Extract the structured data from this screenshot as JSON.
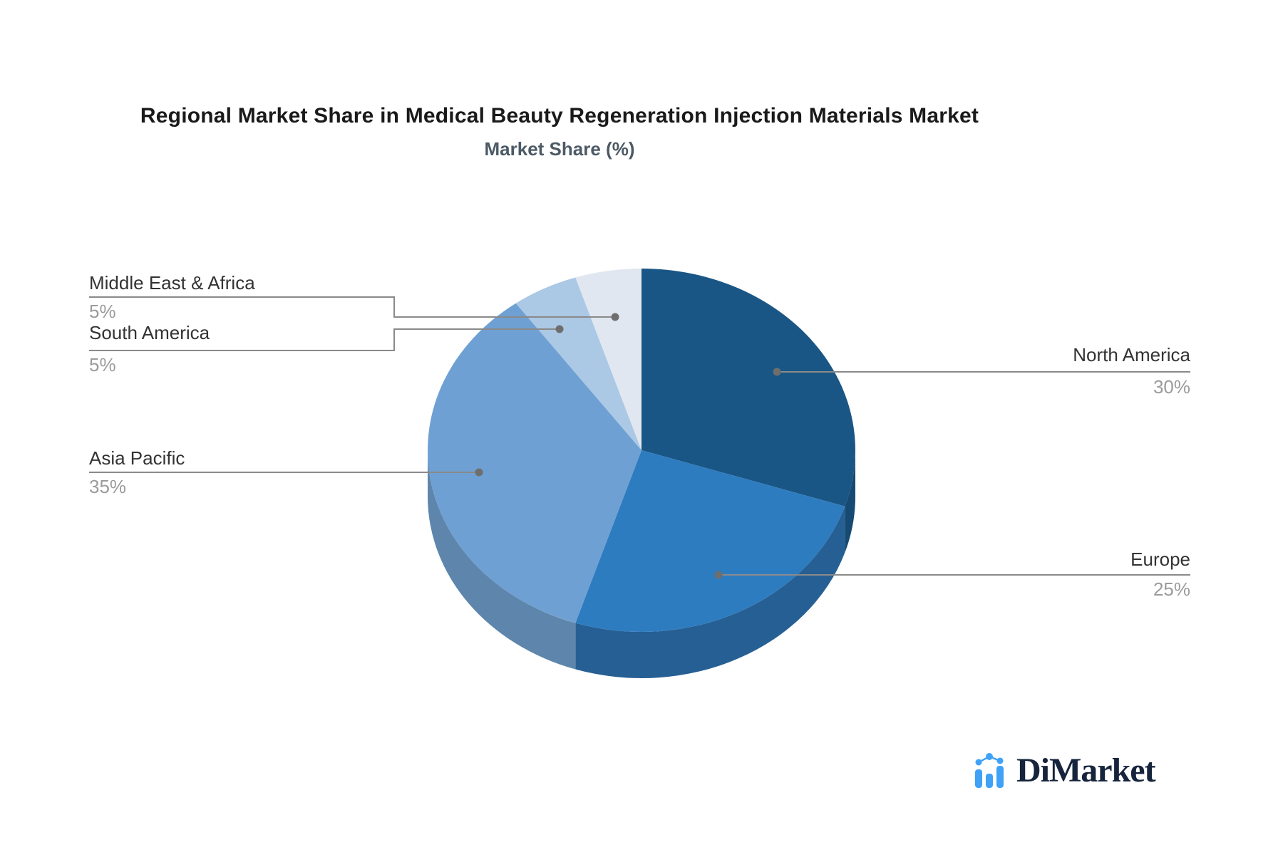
{
  "title": "Regional Market Share in Medical Beauty Regeneration Injection Materials Market",
  "subtitle": "Market Share (%)",
  "brand": {
    "name": "DiMarket"
  },
  "chart_data": {
    "type": "pie",
    "style": "3d",
    "title": "Regional Market Share in Medical Beauty Regeneration Injection Materials Market",
    "subtitle": "Market Share (%)",
    "unit": "%",
    "start_angle_deg": 0,
    "direction": "clockwise",
    "labels": [
      "North America",
      "Europe",
      "Asia Pacific",
      "South America",
      "Middle East & Africa"
    ],
    "values": [
      30,
      25,
      35,
      5,
      5
    ],
    "display_labels": [
      "30%",
      "25%",
      "35%",
      "5%",
      "5%"
    ],
    "colors": [
      "#1A5685",
      "#2E7CC0",
      "#6FA0D3",
      "#ABC8E4",
      "#E0E7F0"
    ],
    "side_colors": [
      "#164A72",
      "#265F93",
      "#5E86AC",
      "#9FBBD6",
      "#D0DAE6"
    ],
    "connector_color": "#8a8a8a",
    "dot_color": "#6e6e6e",
    "label_color": "#333333",
    "pct_color": "#9b9b9b"
  }
}
